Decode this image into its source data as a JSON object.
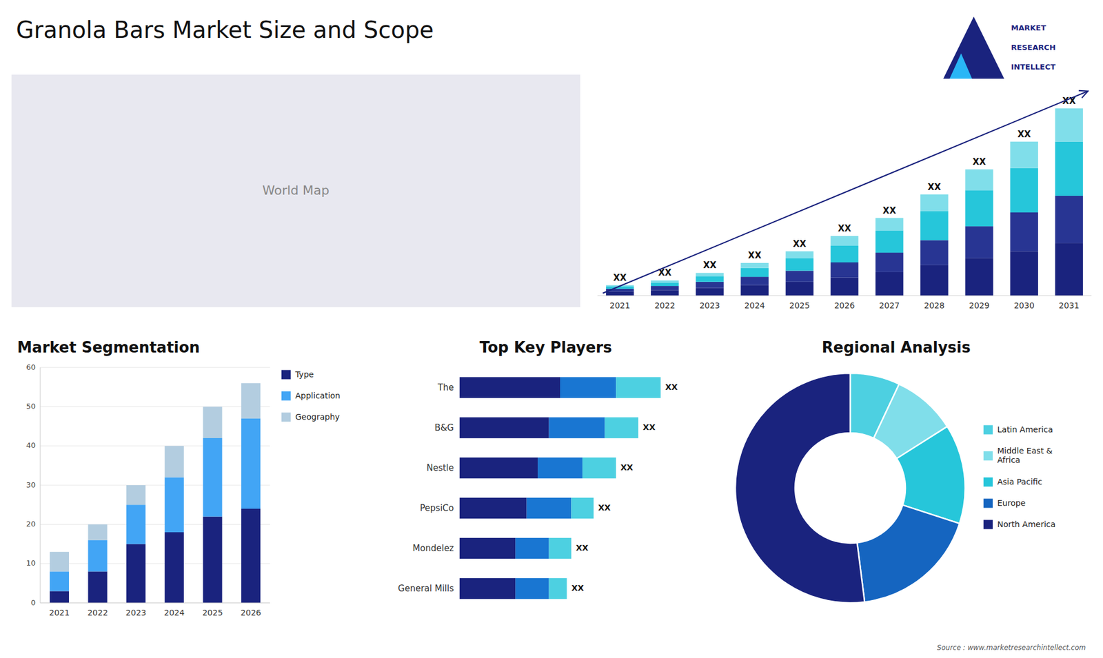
{
  "title": "Granola Bars Market Size and Scope",
  "annotations": [
    "MARKET",
    "RESEARCH",
    "INTELLECT",
    "Source : www.marketresearchintellect.com"
  ],
  "chart_data": [
    {
      "type": "map",
      "annotations": [
        "World Map"
      ]
    },
    {
      "type": "bar",
      "stacked": true,
      "categories": [
        "2021",
        "2022",
        "2023",
        "2024",
        "2025",
        "2026",
        "2027",
        "2028",
        "2029",
        "2030",
        "2031"
      ],
      "series": [
        {
          "color": "#1a237e",
          "values": [
            1.5,
            2.0,
            2.8,
            3.8,
            5.0,
            6.5,
            8.5,
            11.0,
            13.5,
            16.0,
            19.0
          ]
        },
        {
          "color": "#283593",
          "values": [
            1.0,
            1.5,
            2.2,
            3.0,
            4.0,
            5.5,
            7.0,
            9.0,
            11.5,
            14.0,
            17.0
          ]
        },
        {
          "color": "#26c6da",
          "values": [
            0.8,
            1.2,
            2.0,
            3.2,
            4.5,
            6.0,
            8.0,
            10.5,
            13.0,
            16.0,
            19.5
          ]
        },
        {
          "color": "#80deea",
          "values": [
            0.5,
            0.8,
            1.2,
            1.8,
            2.5,
            3.5,
            4.5,
            6.0,
            7.5,
            9.5,
            12.0
          ]
        }
      ],
      "annotations": [
        "XX",
        "XX",
        "XX",
        "XX",
        "XX",
        "XX",
        "XX",
        "XX",
        "XX",
        "XX",
        "XX"
      ],
      "ylim": [
        0,
        75.5
      ],
      "tick_labels": "x"
    },
    {
      "type": "bar",
      "stacked": true,
      "title": "Market Segmentation",
      "categories": [
        "2021",
        "2022",
        "2023",
        "2024",
        "2025",
        "2026"
      ],
      "series": [
        {
          "name": "Type",
          "color": "#1a237e",
          "values": [
            3,
            8,
            15,
            18,
            22,
            24
          ]
        },
        {
          "name": "Application",
          "color": "#42a5f5",
          "values": [
            5,
            8,
            10,
            14,
            20,
            23
          ]
        },
        {
          "name": "Geography",
          "color": "#b3cde0",
          "values": [
            5,
            4,
            5,
            8,
            8,
            9
          ]
        }
      ],
      "ylim": [
        0,
        60
      ],
      "yticks": [
        0,
        10,
        20,
        30,
        40,
        50,
        60
      ],
      "grid": true,
      "legend": "right"
    },
    {
      "type": "bar",
      "orientation": "horizontal",
      "stacked": true,
      "title": "Top Key Players",
      "categories": [
        "The",
        "B&G",
        "Nestle",
        "PepsiCo",
        "Mondelez",
        "General Mills"
      ],
      "series": [
        {
          "color": "#1a237e",
          "values": [
            4.5,
            4.0,
            3.5,
            3.0,
            2.5,
            2.5
          ]
        },
        {
          "color": "#1976d2",
          "values": [
            2.5,
            2.5,
            2.0,
            2.0,
            1.5,
            1.5
          ]
        },
        {
          "color": "#4dd0e1",
          "values": [
            2.0,
            1.5,
            1.5,
            1.0,
            1.0,
            0.8
          ]
        }
      ],
      "annotations": [
        "XX",
        "XX",
        "XX",
        "XX",
        "XX",
        "XX"
      ],
      "xlim": [
        0,
        10.8
      ],
      "tick_labels": "y"
    },
    {
      "type": "pie",
      "title": "Regional Analysis",
      "categories": [
        "Latin America",
        "Middle East &\nAfrica",
        "Asia Pacific",
        "Europe",
        "North America"
      ],
      "values": [
        7,
        9,
        14,
        18,
        52
      ],
      "colors": [
        "#4dd0e1",
        "#80deea",
        "#26c6da",
        "#1565c0",
        "#1a237e"
      ],
      "legend": "right"
    }
  ]
}
